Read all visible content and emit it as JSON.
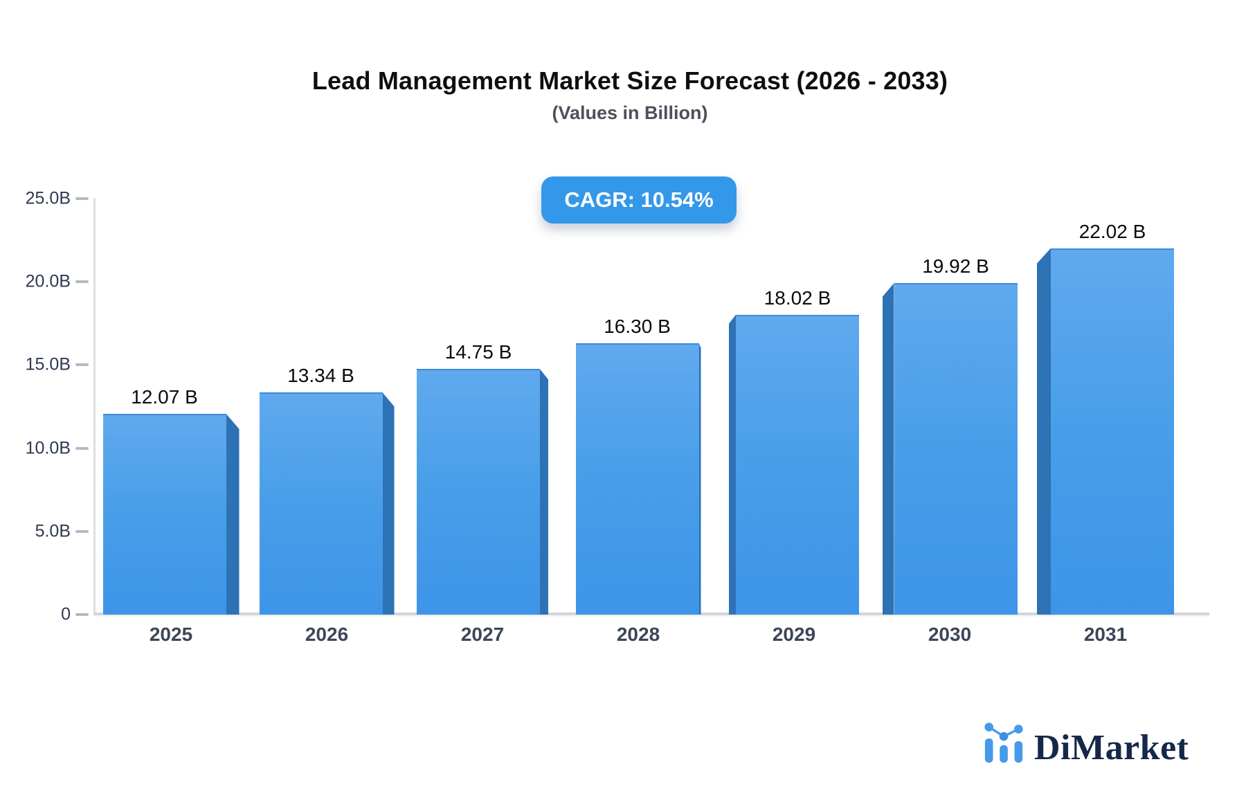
{
  "header": {
    "title": "Lead Management Market Size Forecast (2026 - 2033)",
    "subtitle": "(Values in Billion)"
  },
  "badge": {
    "label": "CAGR: 10.54%"
  },
  "chart_data": {
    "type": "bar",
    "title": "Lead Management Market Size Forecast (2026 - 2033)",
    "subtitle": "(Values in Billion)",
    "categories": [
      "2025",
      "2026",
      "2027",
      "2028",
      "2029",
      "2030",
      "2031"
    ],
    "values": [
      12.07,
      13.34,
      14.75,
      16.3,
      18.02,
      19.92,
      22.02
    ],
    "value_labels": [
      "12.07 B",
      "13.34 B",
      "14.75 B",
      "16.30 B",
      "18.02 B",
      "19.92 B",
      "22.02 B"
    ],
    "annotation": "CAGR: 10.54%",
    "xlabel": "",
    "ylabel": "",
    "ylim": [
      0,
      25
    ],
    "yticks": [
      {
        "value": 0,
        "label": "0"
      },
      {
        "value": 5,
        "label": "5.0B"
      },
      {
        "value": 10,
        "label": "10.0B"
      },
      {
        "value": 15,
        "label": "15.0B"
      },
      {
        "value": 20,
        "label": "20.0B"
      },
      {
        "value": 25,
        "label": "25.0B"
      }
    ],
    "grid": false,
    "legend": false,
    "style": "3d-perspective-bars"
  },
  "colors": {
    "bar_face_top": "#60a9ee",
    "bar_face_bottom": "#3e94e8",
    "bar_side": "#2d72b4",
    "badge_background": "#3498ea",
    "badge_text": "#ffffff",
    "axis_line": "#d2d6da",
    "tick_label": "#2e3950",
    "category_label": "#3c4658",
    "value_label": "#0b0b0c",
    "logo_blue": "#459ae9",
    "logo_navy": "#152849"
  },
  "branding": {
    "name": "DiMarket",
    "icon": "bar-chart-logo-icon"
  }
}
